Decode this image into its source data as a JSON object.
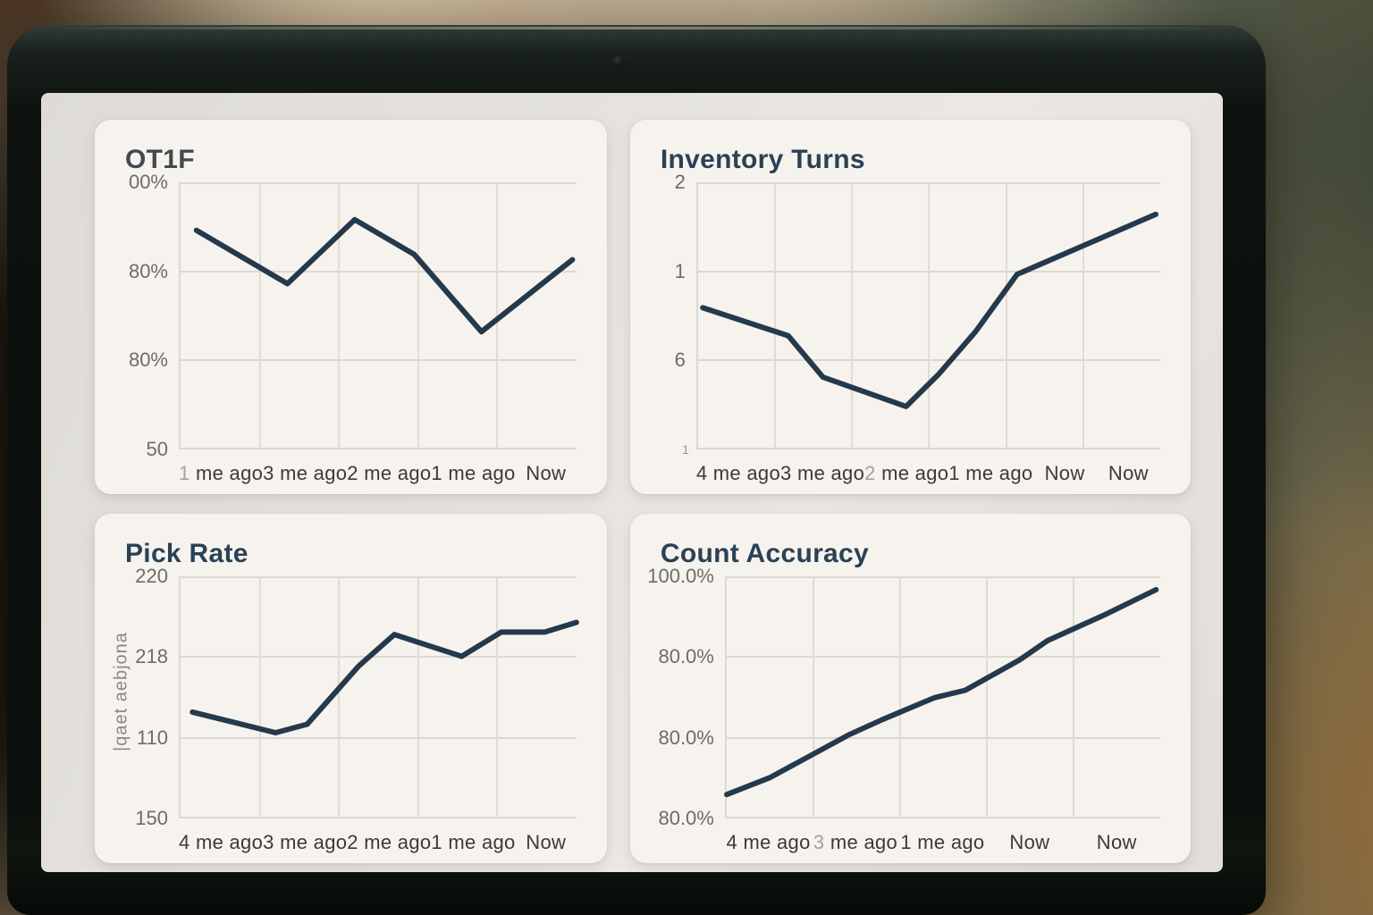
{
  "theme": {
    "line_color": "#24394c",
    "card_bg": "#f6f3ee",
    "screen_bg": "#e4e1dc",
    "bezel_color": "#0d120f",
    "grid_color": "#dcd8d1",
    "tick_color": "#6e6c68",
    "xlabel_color": "#3b3a38",
    "title_navy": "#2a4156"
  },
  "chart_data": [
    {
      "type": "line",
      "title": "OT1F",
      "title_color": "#44494f",
      "y_ticks": [
        {
          "t": "00%"
        },
        {
          "t": "80%"
        },
        {
          "t": "80%"
        },
        {
          "t": "50"
        }
      ],
      "x_ticks": [
        {
          "t": "1 me ago",
          "lp": 1
        },
        {
          "t": "3 me ago"
        },
        {
          "t": "2 me ago"
        },
        {
          "t": "1 me ago"
        },
        {
          "t": "Now"
        }
      ],
      "points": [
        {
          "x": 0.04,
          "v": 0.82
        },
        {
          "x": 0.27,
          "v": 0.62
        },
        {
          "x": 0.44,
          "v": 0.86
        },
        {
          "x": 0.59,
          "v": 0.73
        },
        {
          "x": 0.76,
          "v": 0.44
        },
        {
          "x": 0.99,
          "v": 0.71
        }
      ],
      "axis_note": "tick text is garbled in source image; v = normalized height above bottom gridline",
      "est_values_pct": [
        91,
        81,
        93,
        86.5,
        72,
        85.5
      ]
    },
    {
      "type": "line",
      "title": "Inventory Turns",
      "title_color": "#2a4156",
      "y_ticks": [
        {
          "t": "2"
        },
        {
          "t": "1"
        },
        {
          "t": "6"
        },
        {
          "t": "1",
          "small": true
        }
      ],
      "x_ticks": [
        {
          "t": "4 me ago"
        },
        {
          "t": "3 me ago"
        },
        {
          "t": "2 me ago",
          "lp": 1
        },
        {
          "t": "1 me ago"
        },
        {
          "t": "Now"
        },
        {
          "t": "Now"
        }
      ],
      "points": [
        {
          "x": 0.01,
          "v": 0.53
        },
        {
          "x": 0.195,
          "v": 0.425
        },
        {
          "x": 0.27,
          "v": 0.27
        },
        {
          "x": 0.45,
          "v": 0.16
        },
        {
          "x": 0.52,
          "v": 0.28
        },
        {
          "x": 0.6,
          "v": 0.44
        },
        {
          "x": 0.69,
          "v": 0.655
        },
        {
          "x": 0.99,
          "v": 0.88
        }
      ],
      "axis_note": "tick text is garbled in source image; v = normalized height above bottom gridline",
      "est_values_turns": [
        1.06,
        0.85,
        0.54,
        0.32,
        0.56,
        0.88,
        1.31,
        1.76
      ]
    },
    {
      "type": "line",
      "title": "Pick Rate",
      "title_color": "#2a4156",
      "rotated_ylabel": "|qaet aebjona",
      "y_ticks": [
        {
          "t": "220"
        },
        {
          "t": "218"
        },
        {
          "t": "110"
        },
        {
          "t": "150"
        }
      ],
      "x_ticks": [
        {
          "t": "4 me ago"
        },
        {
          "t": "3 me ago"
        },
        {
          "t": "2 me ago"
        },
        {
          "t": "1 me ago"
        },
        {
          "t": "Now"
        }
      ],
      "points": [
        {
          "x": 0.03,
          "v": 0.44
        },
        {
          "x": 0.24,
          "v": 0.355
        },
        {
          "x": 0.32,
          "v": 0.39
        },
        {
          "x": 0.45,
          "v": 0.63
        },
        {
          "x": 0.54,
          "v": 0.76
        },
        {
          "x": 0.71,
          "v": 0.67
        },
        {
          "x": 0.81,
          "v": 0.77
        },
        {
          "x": 0.92,
          "v": 0.77
        },
        {
          "x": 1.0,
          "v": 0.81
        }
      ],
      "axis_note": "tick text is garbled in source image; v = normalized height above bottom gridline",
      "est_values": [
        181,
        175,
        177,
        194,
        203,
        197,
        204,
        204,
        207
      ]
    },
    {
      "type": "line",
      "title": "Count Accuracy",
      "title_color": "#2a4156",
      "y_ticks": [
        {
          "t": "100.0%"
        },
        {
          "t": "80.0%"
        },
        {
          "t": "80.0%"
        },
        {
          "t": "80.0%"
        }
      ],
      "x_ticks": [
        {
          "t": "4 me ago"
        },
        {
          "t": "3 me ago",
          "lp": 1
        },
        {
          "t": "1 me ago"
        },
        {
          "t": "Now"
        },
        {
          "t": "Now"
        }
      ],
      "points": [
        {
          "x": 0.0,
          "v": 0.1
        },
        {
          "x": 0.1,
          "v": 0.17
        },
        {
          "x": 0.28,
          "v": 0.345
        },
        {
          "x": 0.36,
          "v": 0.41
        },
        {
          "x": 0.48,
          "v": 0.5
        },
        {
          "x": 0.55,
          "v": 0.53
        },
        {
          "x": 0.675,
          "v": 0.655
        },
        {
          "x": 0.74,
          "v": 0.735
        },
        {
          "x": 0.87,
          "v": 0.84
        },
        {
          "x": 0.99,
          "v": 0.945
        }
      ],
      "axis_note": "tick text is garbled in source image; v = normalized height above bottom gridline",
      "est_values_pct": [
        77.5,
        79.3,
        83.6,
        85.3,
        87.5,
        88.3,
        91.4,
        93.4,
        96.0,
        98.6
      ]
    }
  ]
}
